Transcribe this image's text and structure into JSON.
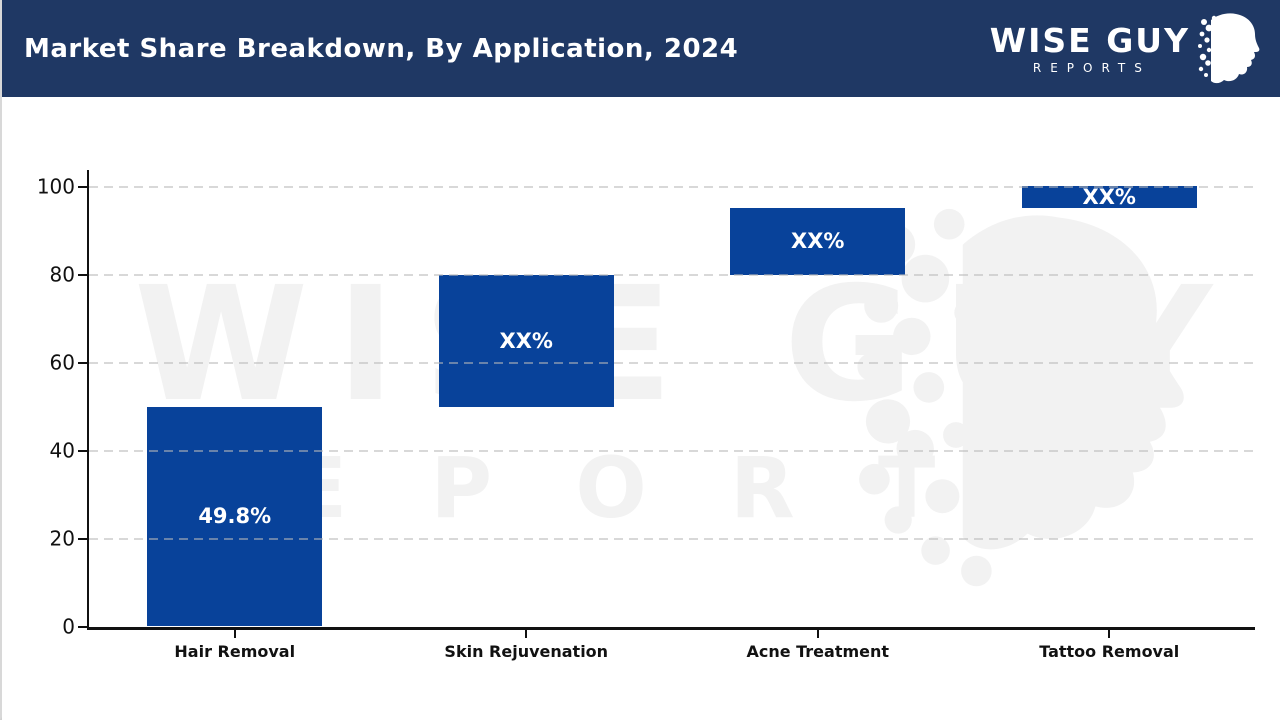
{
  "header": {
    "title": "Market Share Breakdown, By Application, 2024",
    "bg_color": "#1f3864",
    "logo": {
      "line1": "WISE GUY",
      "line2": "REPORTS"
    }
  },
  "watermark": {
    "line1": "WISE GUY",
    "line2": "REPORTS"
  },
  "chart_data": {
    "type": "bar",
    "subtype": "waterfall-floating-segments",
    "title": "Market Share Breakdown, By Application, 2024",
    "categories": [
      "Hair Removal",
      "Skin Rejuvenation",
      "Acne Treatment",
      "Tattoo Removal"
    ],
    "series": [
      {
        "name": "Market Share %",
        "segments": [
          {
            "category": "Hair Removal",
            "label": "49.8%",
            "start": 0,
            "end": 49.8
          },
          {
            "category": "Skin Rejuvenation",
            "label": "XX%",
            "start": 49.8,
            "end": 79.8
          },
          {
            "category": "Acne Treatment",
            "label": "XX%",
            "start": 79.8,
            "end": 95.0
          },
          {
            "category": "Tattoo Removal",
            "label": "XX%",
            "start": 95.0,
            "end": 100.0
          }
        ]
      }
    ],
    "xlabel": "",
    "ylabel": "",
    "ylim": [
      0,
      100
    ],
    "yticks": [
      0,
      20,
      40,
      60,
      80,
      100
    ],
    "grid": "horizontal-dashed",
    "legend": "none",
    "bar_color": "#08429a",
    "bar_label_color": "#ffffff",
    "axis_color": "#111111",
    "grid_color": "#e3e3e3"
  }
}
